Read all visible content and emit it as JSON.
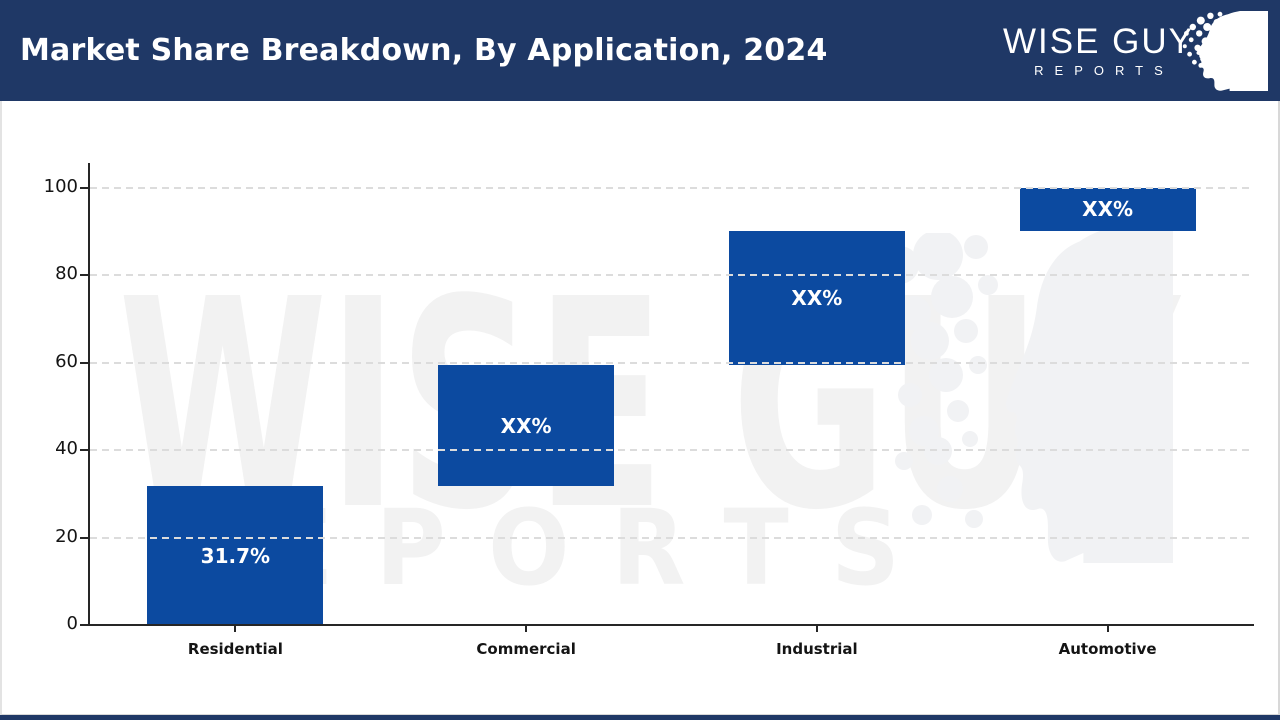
{
  "header": {
    "title": "Market Share Breakdown, By Application, 2024",
    "logo": {
      "line1": "WISE GUY",
      "line2": "REPORTS"
    }
  },
  "watermark": {
    "line1": "WISE GUY",
    "line2": "REPORTS"
  },
  "colors": {
    "header_bg": "#1f3866",
    "bar": "#0c4aa0",
    "gridline": "#dcdcdc",
    "axis": "#262626",
    "value_label": "#ffffff",
    "watermark": "#f2f2f2"
  },
  "chart_data": {
    "type": "bar",
    "subtype": "waterfall",
    "title": "Market Share Breakdown, By Application, 2024",
    "categories": [
      "Residential",
      "Commercial",
      "Industrial",
      "Automotive"
    ],
    "segments": [
      {
        "category": "Residential",
        "start": 0,
        "end": 31.7,
        "label": "31.7%"
      },
      {
        "category": "Commercial",
        "start": 31.7,
        "end": 59.4,
        "label": "XX%"
      },
      {
        "category": "Industrial",
        "start": 59.4,
        "end": 90.0,
        "label": "XX%"
      },
      {
        "category": "Automotive",
        "start": 90.0,
        "end": 100.0,
        "label": "XX%"
      }
    ],
    "xlabel": "",
    "ylabel": "",
    "ylim": [
      0,
      100
    ],
    "yticks": [
      0,
      20,
      40,
      60,
      80,
      100
    ],
    "grid": "horizontal-dashed",
    "legend": false
  }
}
